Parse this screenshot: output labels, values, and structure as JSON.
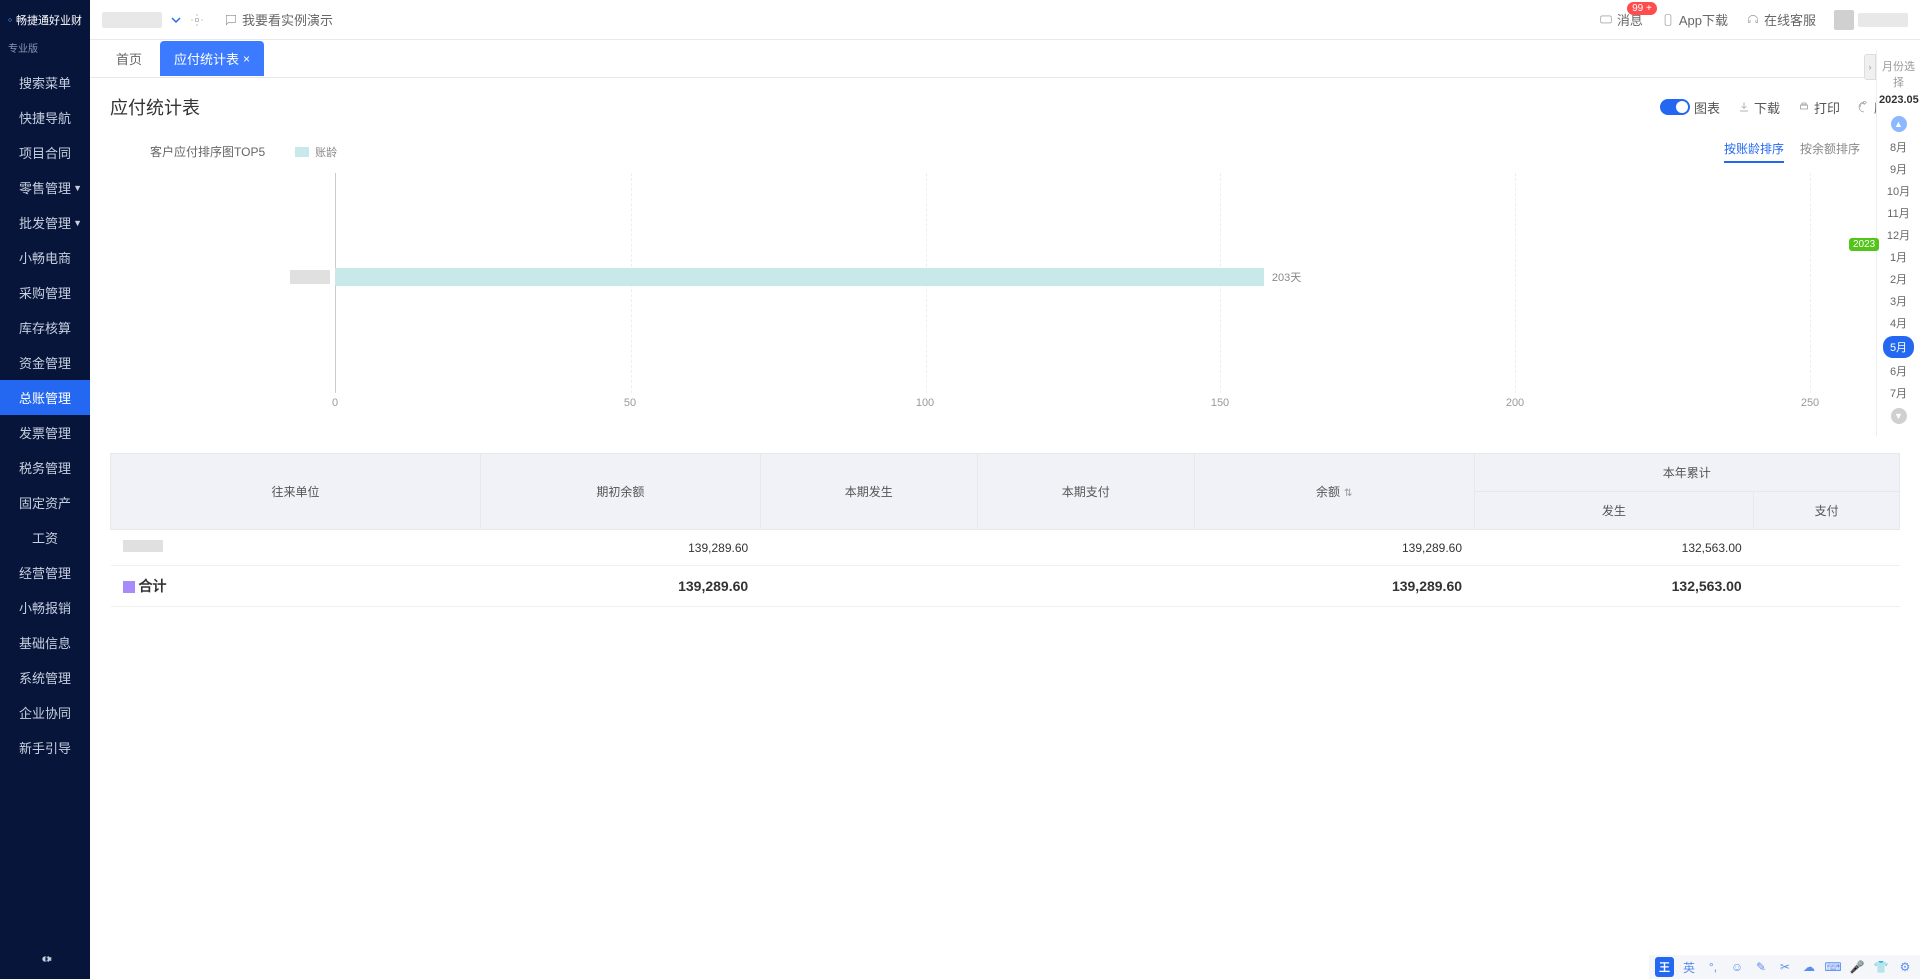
{
  "brand": {
    "name": "畅捷通好业财",
    "version": "专业版"
  },
  "header": {
    "demo_link": "我要看实例演示",
    "msg": "消息",
    "msg_badge": "99 +",
    "app_dl": "App下载",
    "cs": "在线客服"
  },
  "sidebar": {
    "items": [
      {
        "label": "搜索菜单"
      },
      {
        "label": "快捷导航"
      },
      {
        "label": "项目合同"
      },
      {
        "label": "零售管理",
        "sub": true
      },
      {
        "label": "批发管理",
        "sub": true
      },
      {
        "label": "小畅电商"
      },
      {
        "label": "采购管理"
      },
      {
        "label": "库存核算"
      },
      {
        "label": "资金管理"
      },
      {
        "label": "总账管理",
        "active": true
      },
      {
        "label": "发票管理"
      },
      {
        "label": "税务管理"
      },
      {
        "label": "固定资产"
      },
      {
        "label": "工资"
      },
      {
        "label": "经营管理"
      },
      {
        "label": "小畅报销"
      },
      {
        "label": "基础信息"
      },
      {
        "label": "系统管理"
      },
      {
        "label": "企业协同"
      },
      {
        "label": "新手引导"
      }
    ]
  },
  "tabs": {
    "home": "首页",
    "active": "应付统计表"
  },
  "page": {
    "title": "应付统计表",
    "actions": {
      "chart": "图表",
      "download": "下载",
      "print": "打印",
      "refresh": "刷新"
    }
  },
  "chart": {
    "title": "客户应付排序图TOP5",
    "legend": "账龄",
    "sort_tabs": [
      "按账龄排序",
      "按余额排序"
    ],
    "sort_active": 0,
    "x_ticks": [
      0,
      50,
      100,
      150,
      200,
      250
    ],
    "x_max": 250,
    "bar_value": 203,
    "bar_value_label": "203天",
    "bar_color": "#c7e9ea",
    "grid_color": "#eeeeee",
    "axis_color": "#cccccc"
  },
  "table": {
    "columns": [
      "往来单位",
      "期初余额",
      "本期发生",
      "本期支付",
      "余额",
      "本年累计"
    ],
    "sub_columns": [
      "发生",
      "支付"
    ],
    "rows": [
      {
        "c1": "",
        "c2": "139,289.60",
        "c3": "",
        "c4": "",
        "c5": "139,289.60",
        "c6": "132,563.00",
        "c7": ""
      }
    ],
    "total_label": "合计",
    "total": {
      "c2": "139,289.60",
      "c3": "",
      "c4": "",
      "c5": "139,289.60",
      "c6": "132,563.00",
      "c7": ""
    }
  },
  "month_picker": {
    "title": "月份选择",
    "current": "2023.05",
    "year_tag": "2023",
    "months": [
      "8月",
      "9月",
      "10月",
      "11月",
      "12月",
      "1月",
      "2月",
      "3月",
      "4月",
      "5月",
      "6月",
      "7月"
    ],
    "active_index": 9
  },
  "ime": {
    "lang": "英"
  }
}
